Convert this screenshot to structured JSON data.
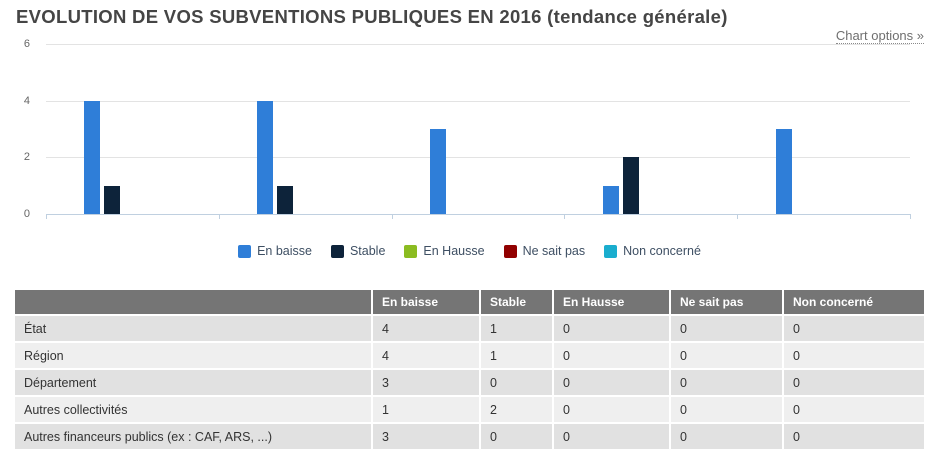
{
  "header": {
    "title": "EVOLUTION DE VOS SUBVENTIONS PUBLIQUES EN 2016 (tendance générale)",
    "chart_options_label": "Chart options »"
  },
  "chart_data": {
    "type": "bar",
    "title": "EVOLUTION DE VOS SUBVENTIONS PUBLIQUES EN 2016 (tendance générale)",
    "categories": [
      "État",
      "Région",
      "Département",
      "Autres collectivités",
      "Autres financeurs publics (ex : CAF, ARS, ...)"
    ],
    "series": [
      {
        "name": "En baisse",
        "color": "#2f7ed8",
        "values": [
          4,
          4,
          3,
          1,
          3
        ]
      },
      {
        "name": "Stable",
        "color": "#0d233a",
        "values": [
          1,
          1,
          0,
          2,
          0
        ]
      },
      {
        "name": "En Hausse",
        "color": "#8bbc21",
        "values": [
          0,
          0,
          0,
          0,
          0
        ]
      },
      {
        "name": "Ne sait pas",
        "color": "#910000",
        "values": [
          0,
          0,
          0,
          0,
          0
        ]
      },
      {
        "name": "Non concerné",
        "color": "#1aadce",
        "values": [
          0,
          0,
          0,
          0,
          0
        ]
      }
    ],
    "xlabel": "",
    "ylabel": "",
    "ylim": [
      0,
      6
    ],
    "yticks": [
      0,
      2,
      4,
      6
    ],
    "grid": true,
    "x_axis_labels_shown": false,
    "legend_position": "bottom"
  },
  "table": {
    "columns": [
      "",
      "En baisse",
      "Stable",
      "En Hausse",
      "Ne sait pas",
      "Non concerné"
    ],
    "rows": [
      {
        "label": "État",
        "values": [
          4,
          1,
          0,
          0,
          0
        ]
      },
      {
        "label": "Région",
        "values": [
          4,
          1,
          0,
          0,
          0
        ]
      },
      {
        "label": "Département",
        "values": [
          3,
          0,
          0,
          0,
          0
        ]
      },
      {
        "label": "Autres collectivités",
        "values": [
          1,
          2,
          0,
          0,
          0
        ]
      },
      {
        "label": "Autres financeurs publics (ex : CAF, ARS, ...)",
        "values": [
          3,
          0,
          0,
          0,
          0
        ]
      }
    ]
  }
}
